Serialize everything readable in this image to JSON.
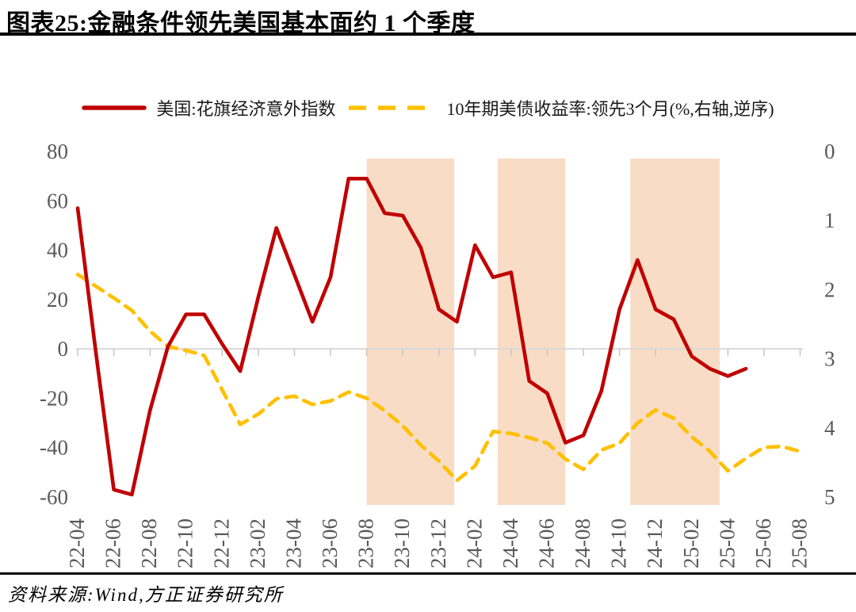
{
  "header": {
    "title": "图表25:金融条件领先美国基本面约 1 个季度"
  },
  "footer": {
    "source": "资料来源:Wind,方正证券研究所"
  },
  "legend": [
    {
      "label": "美国:花旗经济意外指数",
      "color": "#C00000",
      "dash": null
    },
    {
      "label": "10年期美债收益率:领先3个月(%,右轴,逆序)",
      "color": "#FFC000",
      "dash": "22 15"
    }
  ],
  "colors": {
    "red": "#C00000",
    "gold": "#FFC000",
    "band": "#F8DCC6",
    "grid": "#D9D9D9",
    "tick": "#C6C6C6",
    "axis_text": "#595959"
  },
  "chart_data": {
    "type": "line",
    "title": "图表25:金融条件领先美国基本面约 1 个季度",
    "grid": "zero-line-only",
    "legend_position": "top-center",
    "x": [
      "22-04",
      "22-05",
      "22-06",
      "22-07",
      "22-08",
      "22-09",
      "22-10",
      "22-11",
      "22-12",
      "23-01",
      "23-02",
      "23-03",
      "23-04",
      "23-05",
      "23-06",
      "23-07",
      "23-08",
      "23-09",
      "23-10",
      "23-11",
      "23-12",
      "24-01",
      "24-02",
      "24-03",
      "24-04",
      "24-05",
      "24-06",
      "24-07",
      "24-08",
      "24-09",
      "24-10",
      "24-11",
      "24-12",
      "25-01",
      "25-02",
      "25-03",
      "25-04",
      "25-05",
      "25-06",
      "25-07",
      "25-08"
    ],
    "x_tick_every": 2,
    "left_axis": {
      "min": -60,
      "max": 80,
      "ticks": [
        80,
        60,
        40,
        20,
        0,
        -20,
        -40,
        -60
      ]
    },
    "right_axis": {
      "min": 0,
      "max": 5,
      "ticks": [
        0,
        1,
        2,
        3,
        4,
        5
      ],
      "inverted": true
    },
    "series": [
      {
        "id": "citi-surprise-line",
        "name": "美国:花旗经济意外指数",
        "axis": "left",
        "color": "#C00000",
        "dash": null,
        "values": [
          57,
          -1,
          -57,
          -59,
          -25,
          1,
          14,
          14,
          2,
          -9,
          21,
          49,
          30,
          11,
          29,
          69,
          69,
          55,
          54,
          41,
          16,
          11,
          42,
          29,
          31,
          -13,
          -18,
          -38,
          -35,
          -17,
          16,
          36,
          16,
          12,
          -3,
          -8,
          -11,
          -8,
          null,
          null,
          null
        ]
      },
      {
        "id": "ust10y-yield-line",
        "name": "10年期美债收益率:领先3个月(%,右轴,逆序)",
        "axis": "right",
        "color": "#FFC000",
        "dash": [
          14,
          10
        ],
        "values": [
          1.78,
          1.95,
          2.12,
          2.3,
          2.6,
          2.82,
          2.88,
          2.95,
          3.45,
          3.95,
          3.8,
          3.58,
          3.54,
          3.66,
          3.61,
          3.48,
          3.57,
          3.75,
          3.97,
          4.25,
          4.48,
          4.76,
          4.55,
          4.05,
          4.08,
          4.14,
          4.22,
          4.45,
          4.6,
          4.32,
          4.22,
          3.93,
          3.74,
          3.86,
          4.13,
          4.34,
          4.62,
          4.44,
          4.28,
          4.27,
          4.34
        ]
      }
    ],
    "bands": {
      "color": "#F8DCC6",
      "ranges": [
        [
          16,
          20.85
        ],
        [
          23.25,
          27.0
        ],
        [
          30.6,
          35.55
        ]
      ],
      "range_labels": [
        [
          "23-08",
          "24-01"
        ],
        [
          "24-03",
          "24-07"
        ],
        [
          "24-11",
          "25-03"
        ]
      ]
    }
  }
}
